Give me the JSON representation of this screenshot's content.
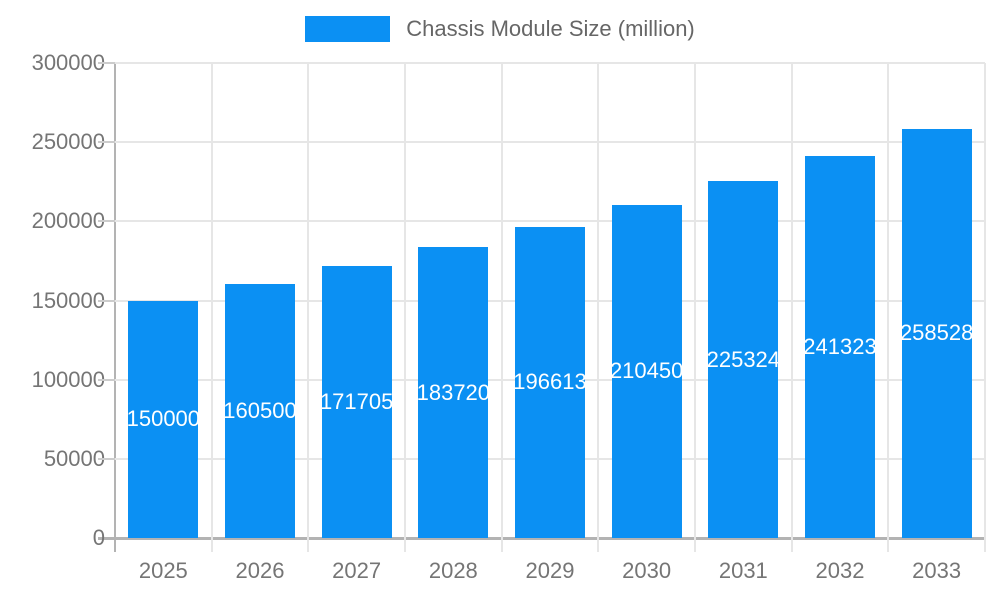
{
  "chart_data": {
    "type": "bar",
    "title": "Chassis Module Size (million)",
    "categories": [
      "2025",
      "2026",
      "2027",
      "2028",
      "2029",
      "2030",
      "2031",
      "2032",
      "2033"
    ],
    "values": [
      150000,
      160500,
      171705,
      183720,
      196613,
      210450,
      225324,
      241323,
      258528
    ],
    "value_labels": [
      "150000",
      "160500",
      "171705",
      "183720",
      "196613",
      "210450",
      "225324",
      "241323",
      "258528"
    ],
    "xlabel": "",
    "ylabel": "",
    "ylim": [
      0,
      300000
    ],
    "yticks": [
      0,
      50000,
      100000,
      150000,
      200000,
      250000,
      300000
    ],
    "ytick_labels": [
      "0",
      "50000",
      "100000",
      "150000",
      "200000",
      "250000",
      "300000"
    ],
    "grid": true,
    "legend_position": "top-center",
    "colors": {
      "bar": "#0b90f3",
      "bar_label": "#ffffff",
      "axis_text": "#757575",
      "legend_text": "#666666",
      "gridline": "#e6e6e6",
      "axis_line": "#b3b3b3",
      "tick": "#cccccc",
      "background": "#ffffff"
    }
  }
}
